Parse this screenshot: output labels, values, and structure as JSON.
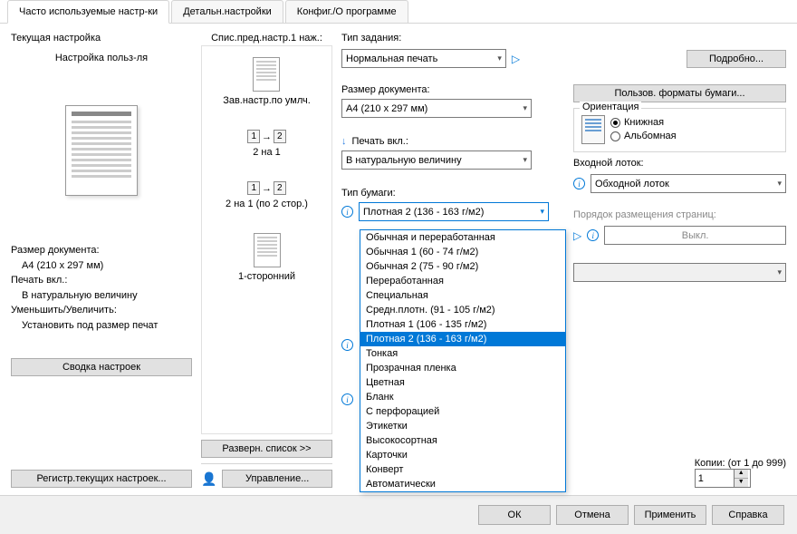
{
  "tabs": {
    "t1": "Часто используемые настр-ки",
    "t2": "Детальн.настройки",
    "t3": "Конфиг./О программе"
  },
  "col1": {
    "title": "Текущая настройка",
    "subtitle": "Настройка польз-ля",
    "doc_size_label": "Размер документа:",
    "doc_size_value": "A4 (210 x 297 мм)",
    "print_on_label": "Печать вкл.:",
    "print_on_value": "В натуральную величину",
    "zoom_label": "Уменьшить/Увеличить:",
    "zoom_value": "Установить под размер печат",
    "summary_btn": "Сводка настроек",
    "register_btn": "Регистр.текущих настроек..."
  },
  "col2": {
    "title": "Спис.пред.настр.1 наж.:",
    "p1": "Зав.настр.по умлч.",
    "p2": "2 на 1",
    "p3": "2 на 1 (по 2 стор.)",
    "p4": "1-сторонний",
    "expand_btn": "Разверн. список >>",
    "manage_btn": "Управление..."
  },
  "col3": {
    "job_type_label": "Тип задания:",
    "job_type_value": "Нормальная печать",
    "details_btn": "Подробно...",
    "doc_size_label": "Размер документа:",
    "doc_size_value": "A4 (210 x 297 мм)",
    "custom_paper_btn": "Пользов. форматы бумаги...",
    "orientation_label": "Ориентация",
    "orient_portrait": "Книжная",
    "orient_landscape": "Альбомная",
    "print_on_label": "Печать вкл.:",
    "print_on_value": "В натуральную величину",
    "paper_type_label": "Тип бумаги:",
    "paper_type_value": "Плотная 2 (136 - 163 г/м2)",
    "input_tray_label": "Входной лоток:",
    "input_tray_value": "Обходной лоток",
    "page_order_label": "Порядок размещения страниц:",
    "page_order_value": "Выкл.",
    "copies_label": "Копии: (от 1 до 999)",
    "copies_value": "1",
    "paper_options": [
      "Обычная и переработанная",
      "Обычная 1 (60 - 74 г/м2)",
      "Обычная 2 (75 - 90 г/м2)",
      "Переработанная",
      "Специальная",
      "Средн.плотн. (91 - 105 г/м2)",
      "Плотная 1 (106 - 135 г/м2)",
      "Плотная 2 (136 - 163 г/м2)",
      "Тонкая",
      "Прозрачная пленка",
      "Цветная",
      "Бланк",
      "С перфорацией",
      "Этикетки",
      "Высокосортная",
      "Карточки",
      "Конверт",
      "Автоматически"
    ],
    "selected_index": 7
  },
  "footer": {
    "ok": "ОК",
    "cancel": "Отмена",
    "apply": "Применить",
    "help": "Справка"
  }
}
